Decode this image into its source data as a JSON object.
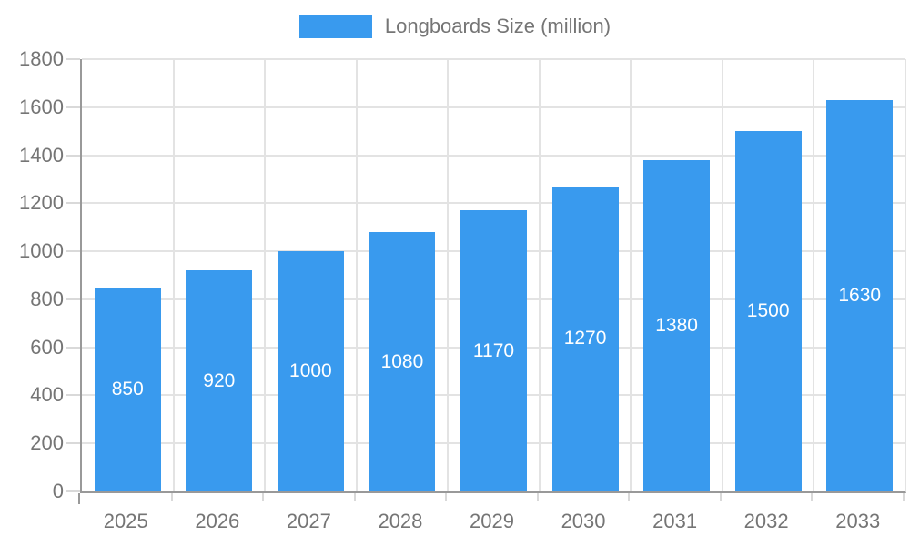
{
  "legend": {
    "label": "Longboards Size (million)"
  },
  "colors": {
    "bar": "#399aee",
    "bar_value_text": "#ffffff",
    "axis_line": "#999999",
    "gridline": "#e3e3e3",
    "tick": "#d9d9d9",
    "label_text": "#757575",
    "background": "#ffffff"
  },
  "chart_data": {
    "type": "bar",
    "title": "",
    "xlabel": "",
    "ylabel": "",
    "series_name": "Longboards Size (million)",
    "categories": [
      "2025",
      "2026",
      "2027",
      "2028",
      "2029",
      "2030",
      "2031",
      "2032",
      "2033"
    ],
    "values": [
      850,
      920,
      1000,
      1080,
      1170,
      1270,
      1380,
      1500,
      1630
    ],
    "value_labels_shown": true,
    "value_label_position": "inside-center",
    "ylim": [
      0,
      1800
    ],
    "yticks": [
      0,
      200,
      400,
      600,
      800,
      1000,
      1200,
      1400,
      1600,
      1800
    ],
    "grid": true,
    "legend_position": "top-center"
  }
}
